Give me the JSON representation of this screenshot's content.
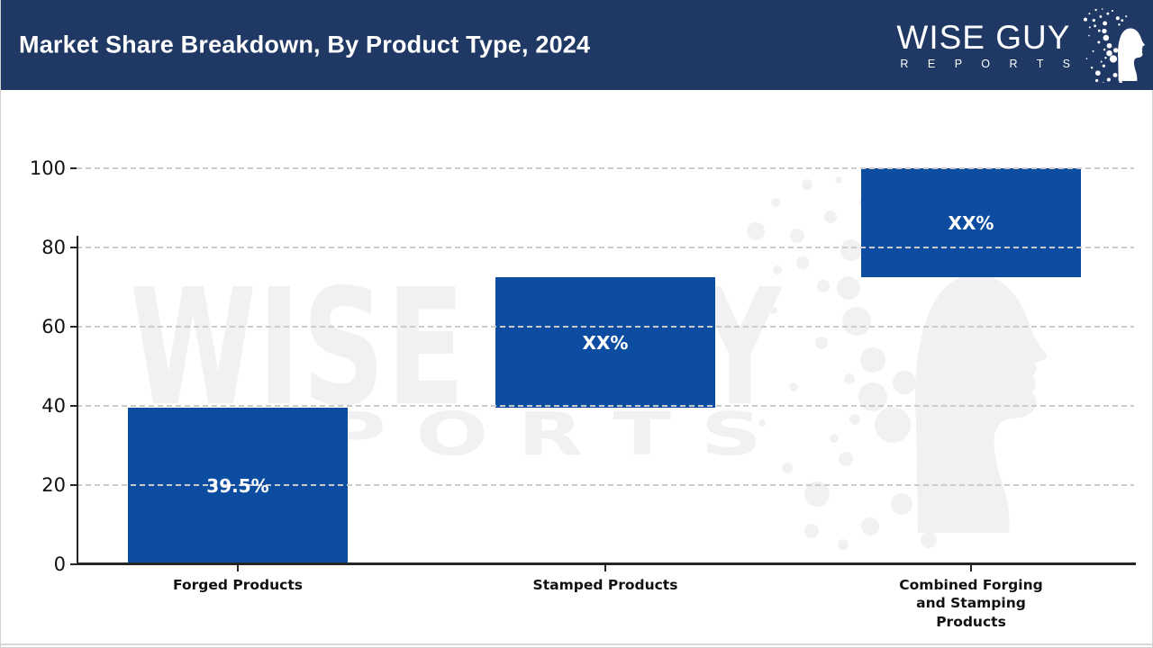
{
  "header": {
    "title": "Market Share Breakdown, By Product Type, 2024",
    "brand": {
      "name": "WISE GUY",
      "reports": "R E P O R T S"
    }
  },
  "watermark": {
    "line1": "WISE GUY",
    "line2": "R E P O R T S"
  },
  "chart_data": {
    "type": "bar",
    "subtype": "waterfall",
    "title": "Market Share Breakdown, By Product Type, 2024",
    "categories": [
      "Forged Products",
      "Stamped Products",
      "Combined Forging\nand Stamping\nProducts"
    ],
    "segments": [
      {
        "category": "Forged Products",
        "start": 0,
        "end": 39.5,
        "label": "39.5%"
      },
      {
        "category": "Stamped Products",
        "start": 39.5,
        "end": 72.5,
        "label": "XX%"
      },
      {
        "category": "Combined Forging and Stamping Products",
        "start": 72.5,
        "end": 100,
        "label": "XX%"
      }
    ],
    "yticks": [
      0,
      20,
      40,
      60,
      80,
      100
    ],
    "ylim": [
      0,
      105
    ],
    "grid": "horizontal-dashed",
    "legend": "none",
    "bar_color": "#0d4da1",
    "grid_color": "#cbcbcb",
    "axis_color": "#262626",
    "label_color": "#ffffff",
    "header_color": "#203864",
    "watermark_color": "#f1f1f4"
  }
}
